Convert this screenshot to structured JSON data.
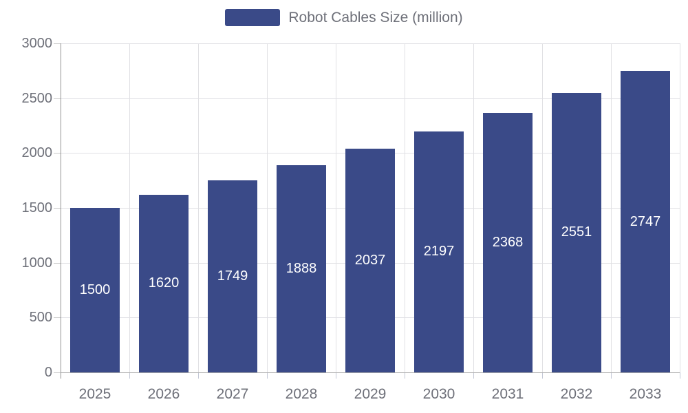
{
  "chart_data": {
    "type": "bar",
    "title": "Robot Cables Size (million)",
    "legend": {
      "label": "Robot Cables Size (million)",
      "position": "top-center"
    },
    "categories": [
      "2025",
      "2026",
      "2027",
      "2028",
      "2029",
      "2030",
      "2031",
      "2032",
      "2033"
    ],
    "values": [
      1500,
      1620,
      1749,
      1888,
      2037,
      2197,
      2368,
      2551,
      2747
    ],
    "xlabel": "",
    "ylabel": "",
    "ylim": [
      0,
      3000
    ],
    "yticks": [
      0,
      500,
      1000,
      1500,
      2000,
      2500,
      3000
    ],
    "grid": true,
    "bar_labels_inside": true,
    "colors": {
      "bar": "#3A4A88",
      "bar_label": "#FFFFFF",
      "axis_text": "#6E7079",
      "grid_line": "#E0E0E4",
      "axis_line_x": "#AAAAAA",
      "axis_line_y": "#919191",
      "tick_mark": "#C4C8D6",
      "background": "#FFFFFF"
    }
  }
}
